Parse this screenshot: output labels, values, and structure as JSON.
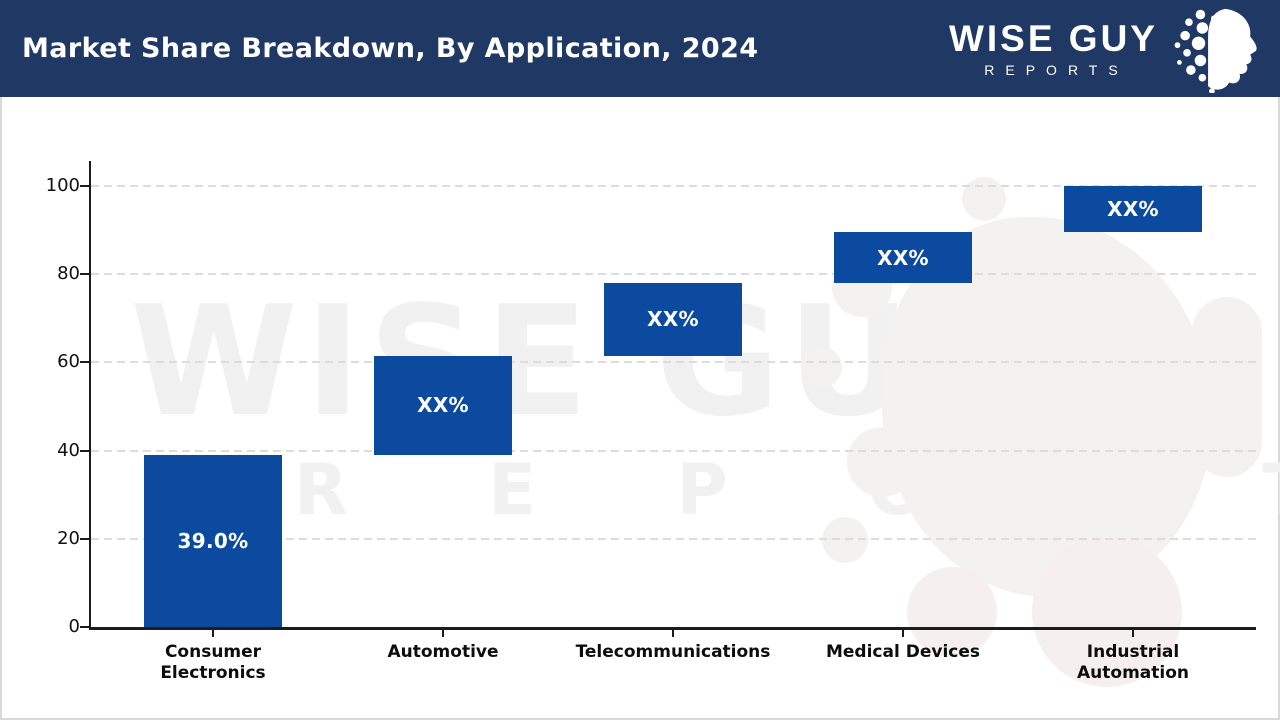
{
  "header": {
    "title": "Market Share Breakdown, By Application, 2024",
    "bg_color": "#1f3864",
    "logo": {
      "wordmark": "WISE GUY",
      "subtitle": "REPORTS"
    }
  },
  "watermark": {
    "line1": "WISE GUY",
    "line2": "R E P O R T S"
  },
  "chart_data": {
    "type": "bar",
    "subtype": "waterfall",
    "title": "Market Share Breakdown, By Application, 2024",
    "xlabel": "",
    "ylabel": "",
    "ylim": [
      0,
      100
    ],
    "yticks": [
      0,
      20,
      40,
      60,
      80,
      100
    ],
    "grid": "horizontal-dashed",
    "legend": "none",
    "bar_color": "#0b4a9f",
    "label_color": "#ffffff",
    "categories": [
      "Consumer Electronics",
      "Automotive",
      "Telecommunications",
      "Medical Devices",
      "Industrial Automation"
    ],
    "segments": [
      {
        "category_display": "Consumer\nElectronics",
        "start": 0,
        "end": 39,
        "value": 39,
        "label": "39.0%"
      },
      {
        "category_display": "Automotive",
        "start": 39,
        "end": 61.5,
        "value": 22.5,
        "label": "XX%"
      },
      {
        "category_display": "Telecommunications",
        "start": 61.5,
        "end": 78,
        "value": 16.5,
        "label": "XX%"
      },
      {
        "category_display": "Medical Devices",
        "start": 78,
        "end": 89.5,
        "value": 11.5,
        "label": "XX%"
      },
      {
        "category_display": "Industrial\nAutomation",
        "start": 89.5,
        "end": 100,
        "value": 10.5,
        "label": "XX%"
      }
    ]
  }
}
